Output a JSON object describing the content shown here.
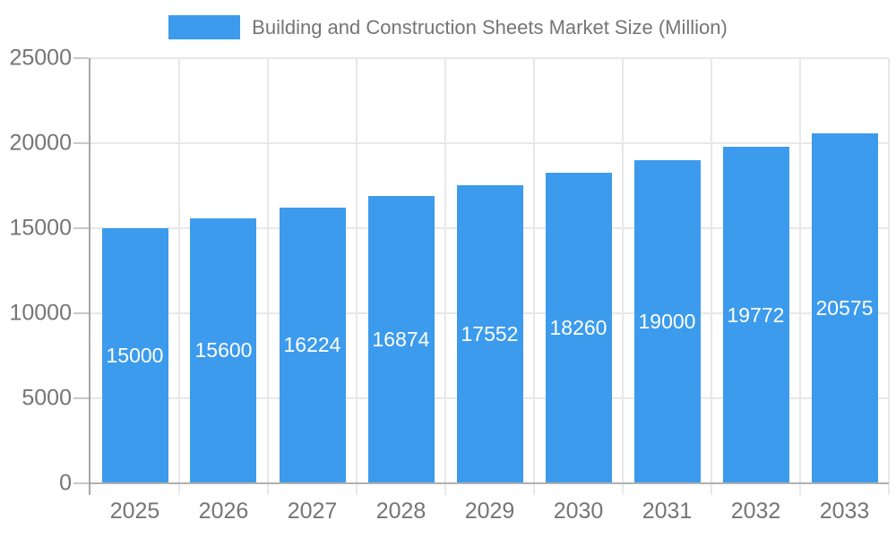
{
  "chart_data": {
    "type": "bar",
    "title": "Building and Construction Sheets Market Size (Million)",
    "series_name": "Building and Construction Sheets Market Size (Million)",
    "categories": [
      "2025",
      "2026",
      "2027",
      "2028",
      "2029",
      "2030",
      "2031",
      "2032",
      "2033"
    ],
    "values": [
      15000,
      15600,
      16224,
      16874,
      17552,
      18260,
      19000,
      19772,
      20575
    ],
    "xlabel": "",
    "ylabel": "",
    "ylim": [
      0,
      25000
    ],
    "y_ticks": [
      0,
      5000,
      10000,
      15000,
      20000,
      25000
    ],
    "y_tick_labels": [
      "0",
      "5000",
      "10000",
      "15000",
      "20000",
      "25000"
    ],
    "grid": true,
    "legend_position": "top-center",
    "bar_labels_inside": true,
    "colors": {
      "bar": "#3c9bec",
      "bar_label": "#ffffff",
      "text": "#757575",
      "gridline": "#e8e8e8",
      "tick": "#c9c9c9",
      "axis": "#a6a6a6",
      "baseline": "#b0b0b0"
    }
  }
}
